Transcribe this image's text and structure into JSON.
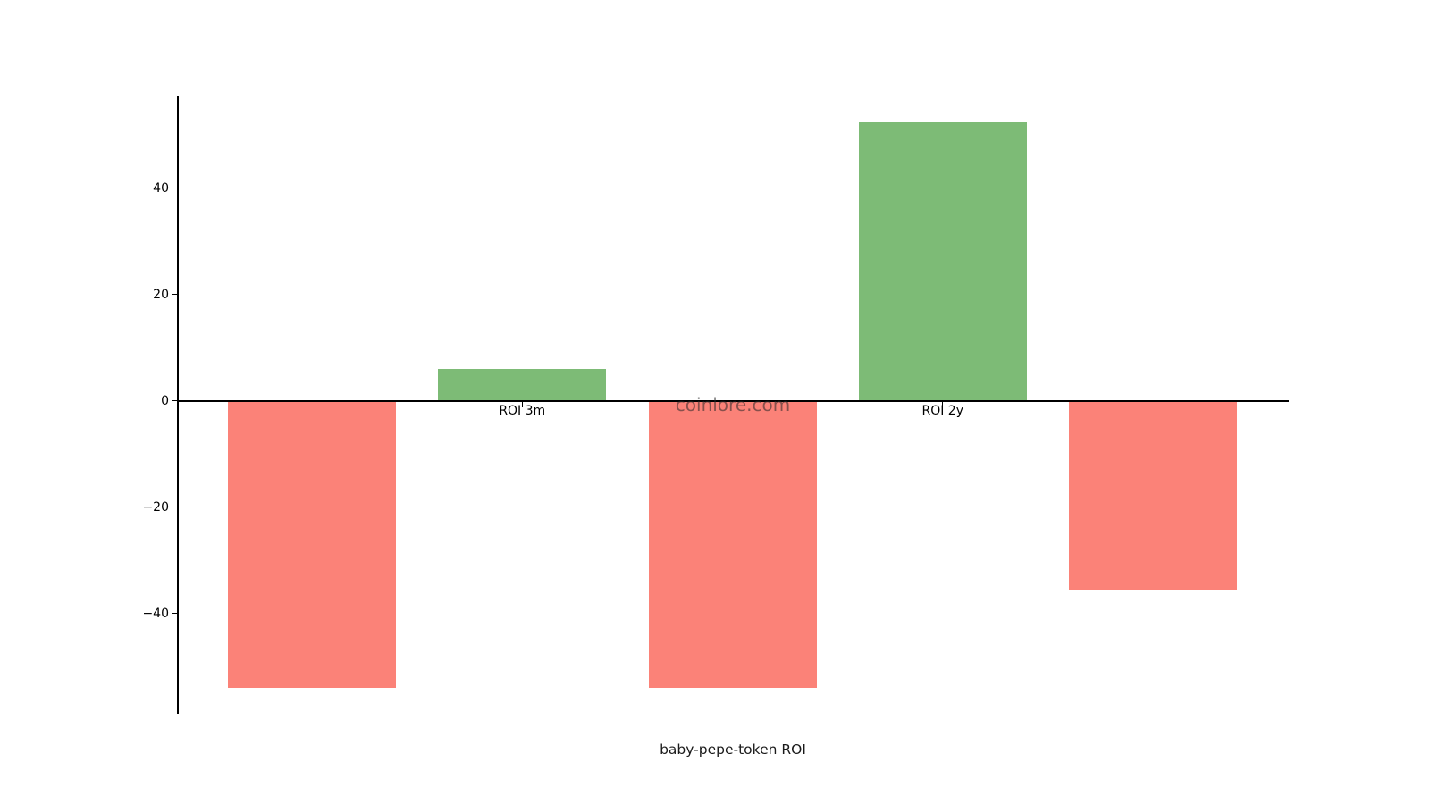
{
  "watermark": "coinlore.com",
  "chart_data": {
    "type": "bar",
    "title": "baby-pepe-token ROI",
    "categories": [
      "",
      "ROI 3m",
      "",
      "ROI 2y",
      ""
    ],
    "values": [
      -53.8,
      6.0,
      -53.8,
      52.3,
      -35.3
    ],
    "series_note": "single series; 3 of 5 x tick labels hidden behind negative bars",
    "colors": {
      "positive": "#7dbb76",
      "negative": "#fb8278",
      "axis": "#000000",
      "tick_text": "#000000"
    },
    "y_ticks": [
      {
        "value": 40,
        "label": "40"
      },
      {
        "value": 20,
        "label": "20"
      },
      {
        "value": 0,
        "label": "0"
      },
      {
        "value": -20,
        "label": "−20"
      },
      {
        "value": -40,
        "label": "−40"
      }
    ],
    "ylim": [
      -58.8,
      57.5
    ],
    "xlabel": "",
    "ylabel": "",
    "grid": false,
    "legend": "none"
  }
}
